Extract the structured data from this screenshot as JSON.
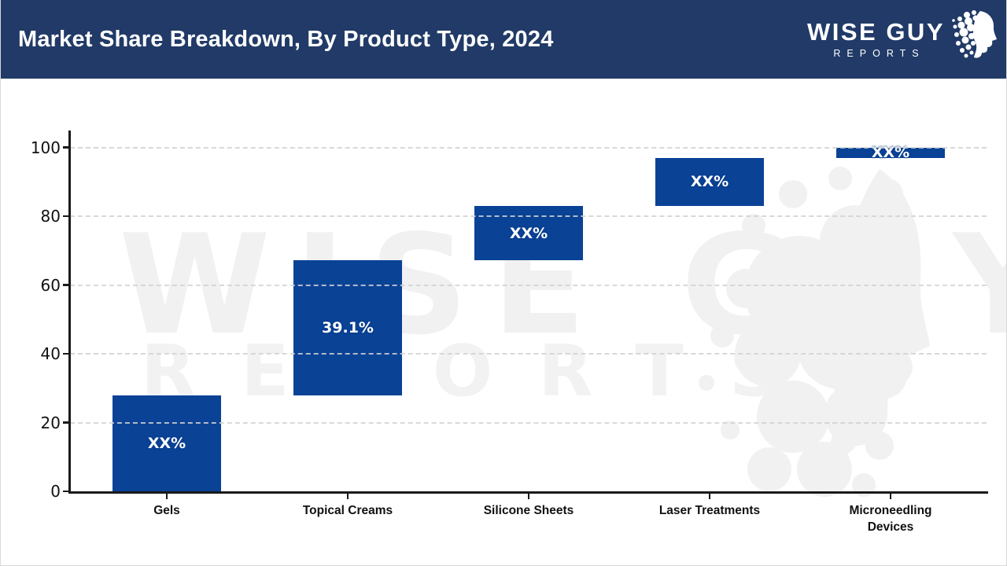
{
  "header": {
    "title": "Market Share Breakdown, By Product Type, 2024",
    "brand": {
      "name": "WISE GUY",
      "sub": "REPORTS"
    }
  },
  "watermark": {
    "line1": "WISE GUY",
    "line2": "REPORTS"
  },
  "colors": {
    "header_background": "#213a67",
    "bar": "#0a4296",
    "bar_label": "#ffffff",
    "gridline": "#d1d1d1",
    "axis": "#1a1a1a"
  },
  "chart_data": {
    "type": "bar",
    "subtype": "waterfall",
    "title": "Market Share Breakdown, By Product Type, 2024",
    "xlabel": "",
    "ylabel": "",
    "ylim": [
      0,
      105
    ],
    "yticks": [
      0,
      20,
      40,
      60,
      80,
      100
    ],
    "grid": "horizontal-dashed",
    "legend": "none",
    "categories": [
      "Gels",
      "Topical Creams",
      "Silicone Sheets",
      "Laser Treatments",
      "Microneedling Devices"
    ],
    "segments": [
      {
        "category": "Gels",
        "start": 0,
        "end": 28.0,
        "label": "XX%"
      },
      {
        "category": "Topical Creams",
        "start": 28.0,
        "end": 67.1,
        "label": "39.1%",
        "value": 39.1
      },
      {
        "category": "Silicone Sheets",
        "start": 67.1,
        "end": 83.0,
        "label": "XX%"
      },
      {
        "category": "Laser Treatments",
        "start": 83.0,
        "end": 96.9,
        "label": "XX%"
      },
      {
        "category": "Microneedling Devices",
        "start": 96.9,
        "end": 100.0,
        "label": "XX%"
      }
    ]
  }
}
